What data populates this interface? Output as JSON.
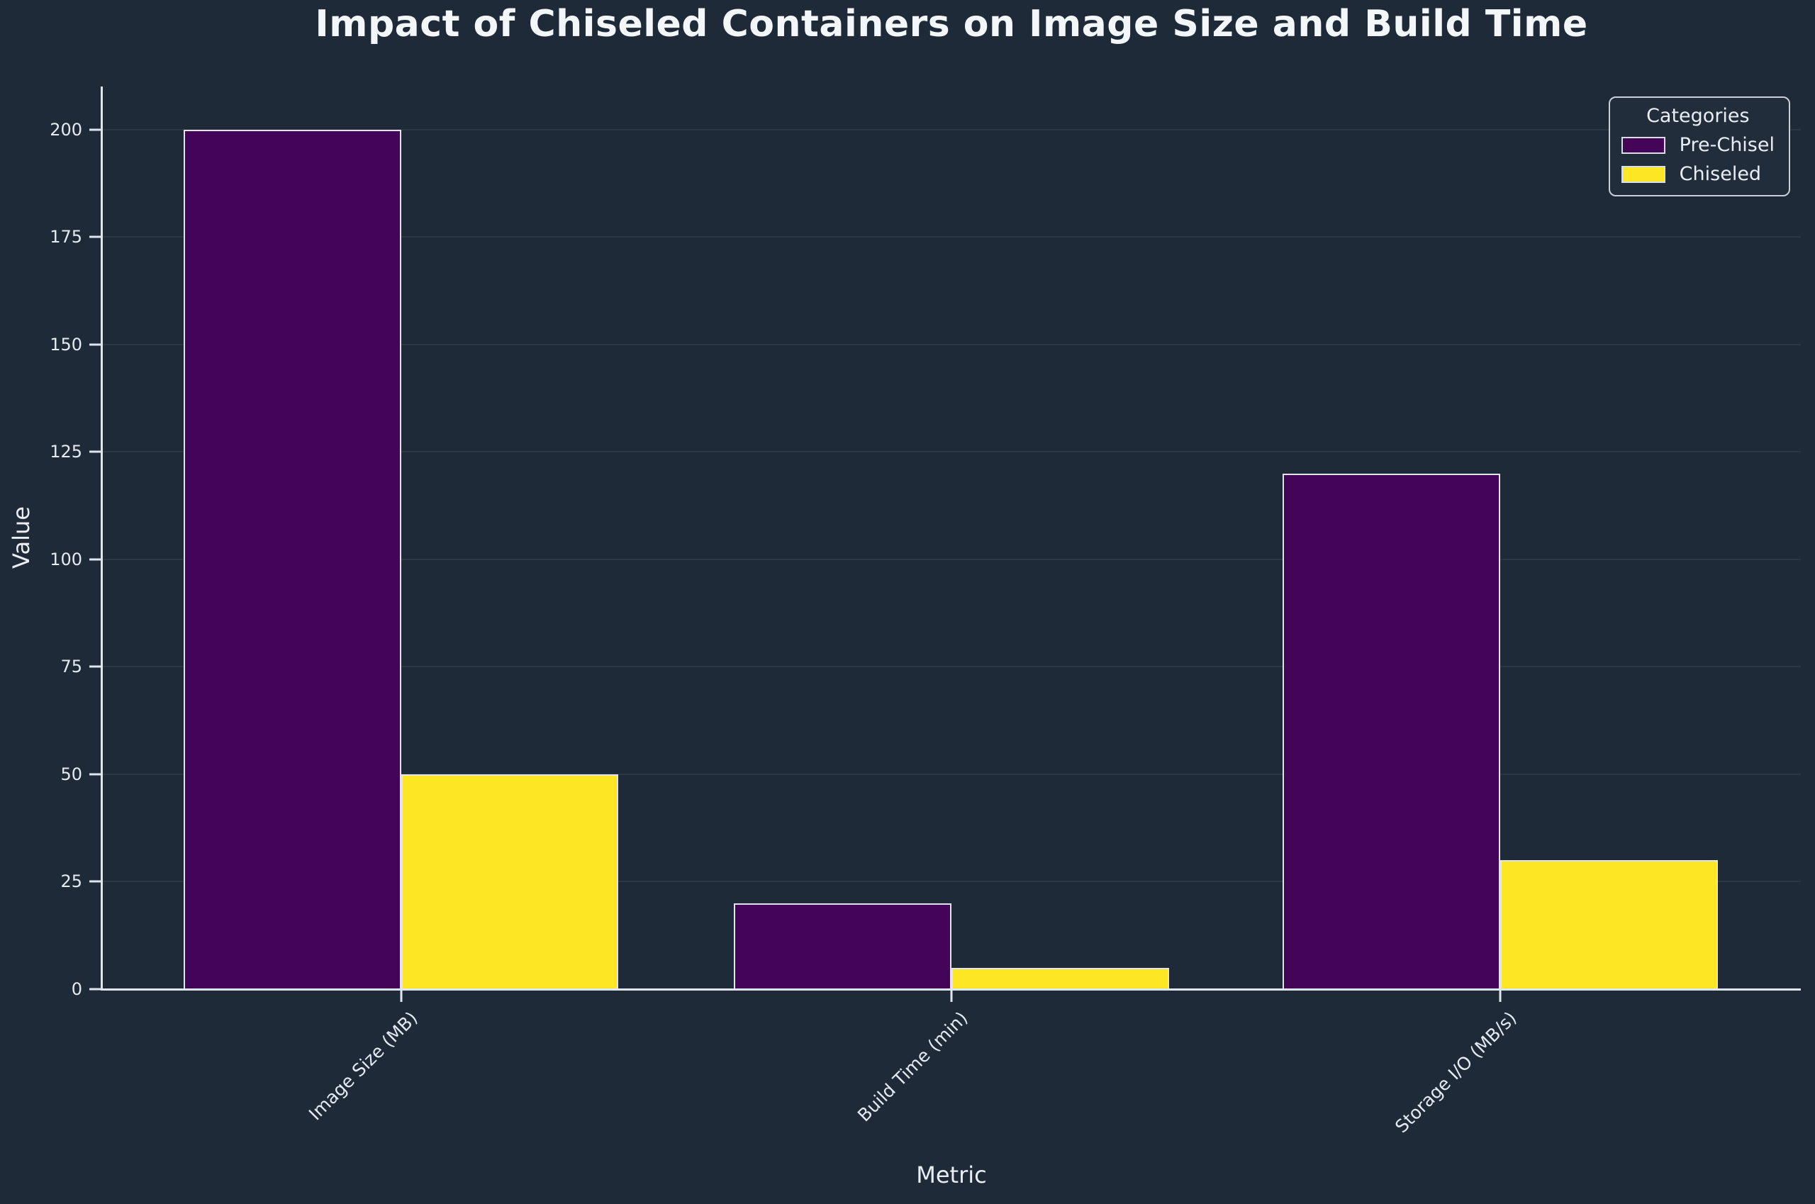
{
  "chart_data": {
    "type": "bar",
    "title": "Impact of Chiseled Containers on Image Size and Build Time",
    "xlabel": "Metric",
    "ylabel": "Value",
    "categories": [
      "Image Size (MB)",
      "Build Time (min)",
      "Storage I/O (MB/s)"
    ],
    "series": [
      {
        "name": "Pre-Chisel",
        "color": "#440458",
        "values": [
          200,
          20,
          120
        ]
      },
      {
        "name": "Chiseled",
        "color": "#fde725",
        "values": [
          50,
          5,
          30
        ]
      }
    ],
    "ylim": [
      0,
      210
    ],
    "yticks": [
      0,
      25,
      50,
      75,
      100,
      125,
      150,
      175,
      200
    ],
    "grid": "horizontal",
    "legend": {
      "title": "Categories",
      "position": "upper-right"
    }
  },
  "colors": {
    "background": "#1e2a37",
    "text": "#e9eef4",
    "axis": "#dfe5ec",
    "gridline": "rgba(233,238,244,0.07)",
    "bar_edge": "#e2e3ed",
    "legend_border": "#c9cfd8"
  }
}
